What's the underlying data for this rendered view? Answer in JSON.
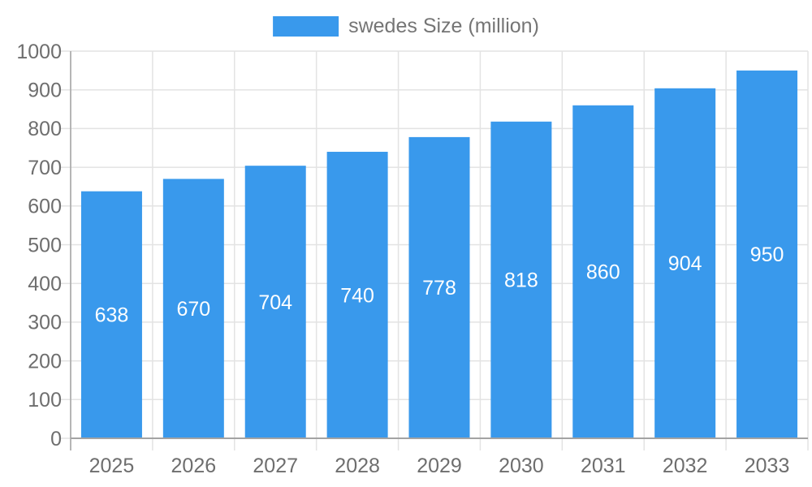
{
  "legend": {
    "label": "swedes Size (million)"
  },
  "chart_data": {
    "type": "bar",
    "title": "",
    "categories": [
      "2025",
      "2026",
      "2027",
      "2028",
      "2029",
      "2030",
      "2031",
      "2032",
      "2033"
    ],
    "series": [
      {
        "name": "swedes Size (million)",
        "values": [
          638,
          670,
          704,
          740,
          778,
          818,
          860,
          904,
          950
        ]
      }
    ],
    "xlabel": "",
    "ylabel": "",
    "ylim": [
      0,
      1000
    ],
    "y_step": 100,
    "grid": true,
    "legend_position": "top",
    "value_labels": "inside-center",
    "colors": {
      "bar": "#3999EC",
      "value_label": "#FFFFFF",
      "grid": "#E3E3E3",
      "axis": "#A3A3A3",
      "tick_label": "#6E6E6E",
      "legend_text": "#757575"
    }
  }
}
